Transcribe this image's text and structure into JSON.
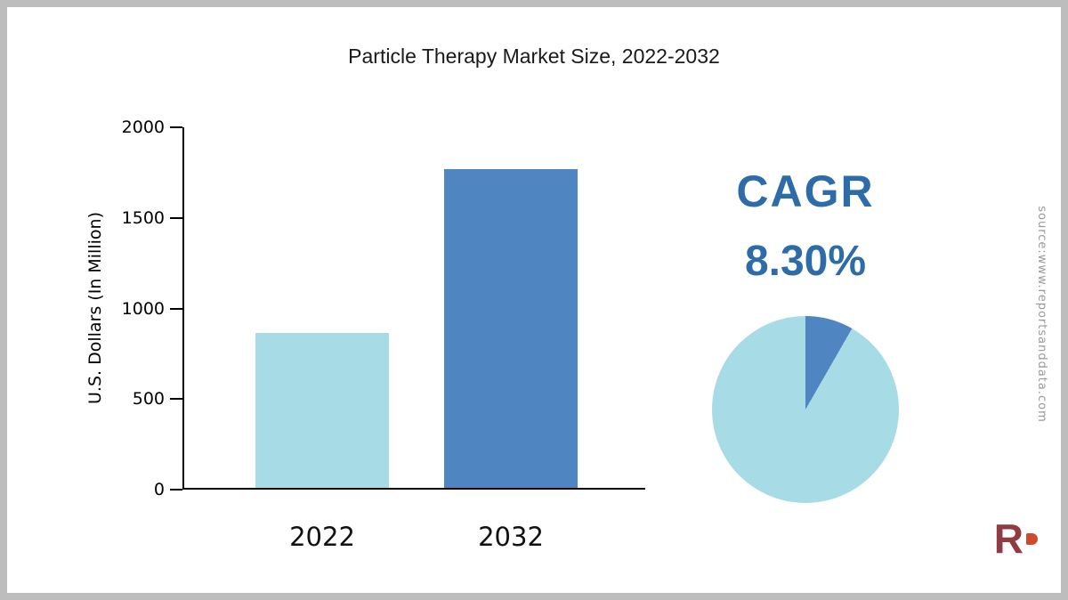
{
  "title": "Particle Therapy Market Size, 2022-2032",
  "cagr": {
    "label": "CAGR",
    "value": "8.30%"
  },
  "source": "source:www.reportsanddata.com",
  "logo": {
    "letter": "R"
  },
  "colors": {
    "bar_2022": "#a7dbe6",
    "bar_2032": "#4f86c2",
    "accent_blue": "#2d6ca8",
    "pie_slice": "#4f86c2",
    "pie_rest": "#a7dbe6",
    "axis": "#000000",
    "source_text": "#9a9a9a",
    "logo_maroon": "#8e3c42",
    "logo_orange": "#d0492e",
    "frame_border": "#bdbdbd"
  },
  "chart_data": [
    {
      "type": "bar",
      "title": "Particle Therapy Market Size, 2022-2032",
      "categories": [
        "2022",
        "2032"
      ],
      "values": [
        860,
        1770
      ],
      "xlabel": "",
      "ylabel": "U.S. Dollars (In Million)",
      "ylim": [
        0,
        2000
      ],
      "yticks": [
        0,
        500,
        1000,
        1500,
        2000
      ],
      "ytick_labels_top_down": [
        "2000",
        "1500",
        "1000",
        "500",
        "0"
      ],
      "bar_colors": [
        "#a7dbe6",
        "#4f86c2"
      ],
      "grid": false,
      "legend": false
    },
    {
      "type": "pie",
      "labels": [
        "CAGR 8.30%",
        "remainder"
      ],
      "values": [
        8.3,
        91.7
      ],
      "colors": [
        "#4f86c2",
        "#a7dbe6"
      ],
      "start_angle_deg": 0,
      "legend": false
    }
  ]
}
